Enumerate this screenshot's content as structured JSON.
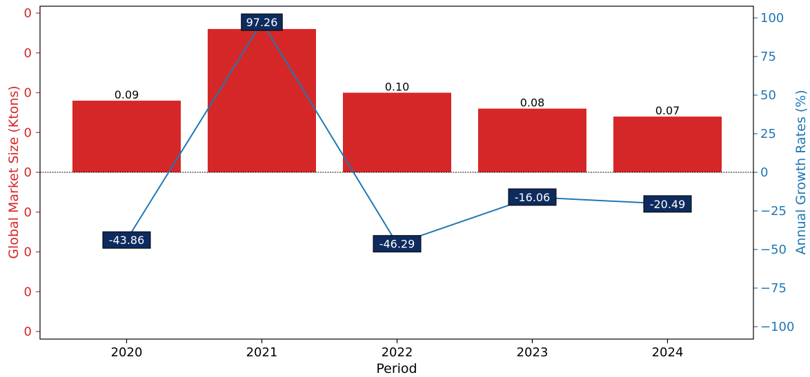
{
  "chart_data": {
    "type": "bar+line",
    "categories": [
      "2020",
      "2021",
      "2022",
      "2023",
      "2024"
    ],
    "xlabel": "Period",
    "series": [
      {
        "name": "Global Market Size (Ktons)",
        "type": "bar",
        "axis": "left",
        "values": [
          0.09,
          0.18,
          0.1,
          0.08,
          0.07
        ],
        "labels": [
          "0.09",
          "",
          "0.10",
          "0.08",
          "0.07"
        ],
        "color": "#d62728"
      },
      {
        "name": "Annual Growth Rates (%)",
        "type": "line",
        "axis": "right",
        "values": [
          -43.86,
          97.26,
          -46.29,
          -16.06,
          -20.49
        ],
        "labels": [
          "-43.86",
          "97.26",
          "-46.29",
          "-16.06",
          "-20.49"
        ],
        "color": "#1f77b4",
        "label_box_color": "#0d2b5e"
      }
    ],
    "left_axis": {
      "label": "Global Market Size (Ktons)",
      "ylim": [
        -0.2,
        0.2
      ],
      "tick_values": [
        -0.2,
        -0.15,
        -0.1,
        -0.05,
        0,
        0.05,
        0.1,
        0.15,
        0.2
      ],
      "tick_labels": [
        "0",
        "0",
        "0",
        "0",
        "0",
        "0",
        "0",
        "0",
        "0"
      ],
      "color": "#d62728"
    },
    "right_axis": {
      "label": "Annual Growth Rates (%)",
      "ylim": [
        -104,
        104
      ],
      "tick_values": [
        -100,
        -75,
        -50,
        -25,
        0,
        25,
        50,
        75,
        100
      ],
      "tick_labels": [
        "−100",
        "−75",
        "−50",
        "−25",
        "0",
        "25",
        "50",
        "75",
        "100"
      ],
      "color": "#1f77b4"
    },
    "zero_line": "dotted",
    "grid": false,
    "legend": "none"
  }
}
